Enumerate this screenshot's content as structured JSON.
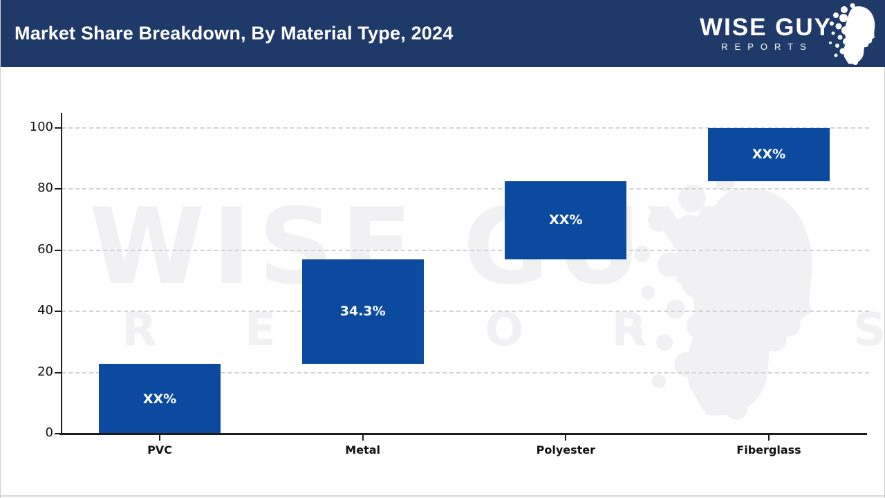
{
  "header": {
    "title": "Market Share Breakdown, By Material Type, 2024",
    "bg_color": "#1f3a68",
    "logo": {
      "line1": "WISE GUY",
      "line2": "REPORTS"
    }
  },
  "watermark": {
    "line1": "WISE GUY",
    "line2": "REPORTS"
  },
  "chart_data": {
    "type": "waterfall-bar",
    "title": "Market Share Breakdown, By Material Type, 2024",
    "categories": [
      "PVC",
      "Metal",
      "Polyester",
      "Fiberglass"
    ],
    "segments": [
      [
        0,
        22.8
      ],
      [
        22.8,
        57.1
      ],
      [
        57.1,
        82.6
      ],
      [
        82.6,
        100
      ]
    ],
    "values": [
      22.8,
      34.3,
      25.5,
      17.4
    ],
    "bar_labels": [
      "XX%",
      "34.3%",
      "XX%",
      "XX%"
    ],
    "yticks": [
      0,
      20,
      40,
      60,
      80,
      100
    ],
    "ylim": [
      0,
      105
    ],
    "xlabel": "",
    "ylabel": "",
    "grid": "horizontal-dashed",
    "legend": "none",
    "bar_color": "#0b4a9e",
    "label_color": "#ffffff",
    "axis_color": "#1c1c1c"
  }
}
